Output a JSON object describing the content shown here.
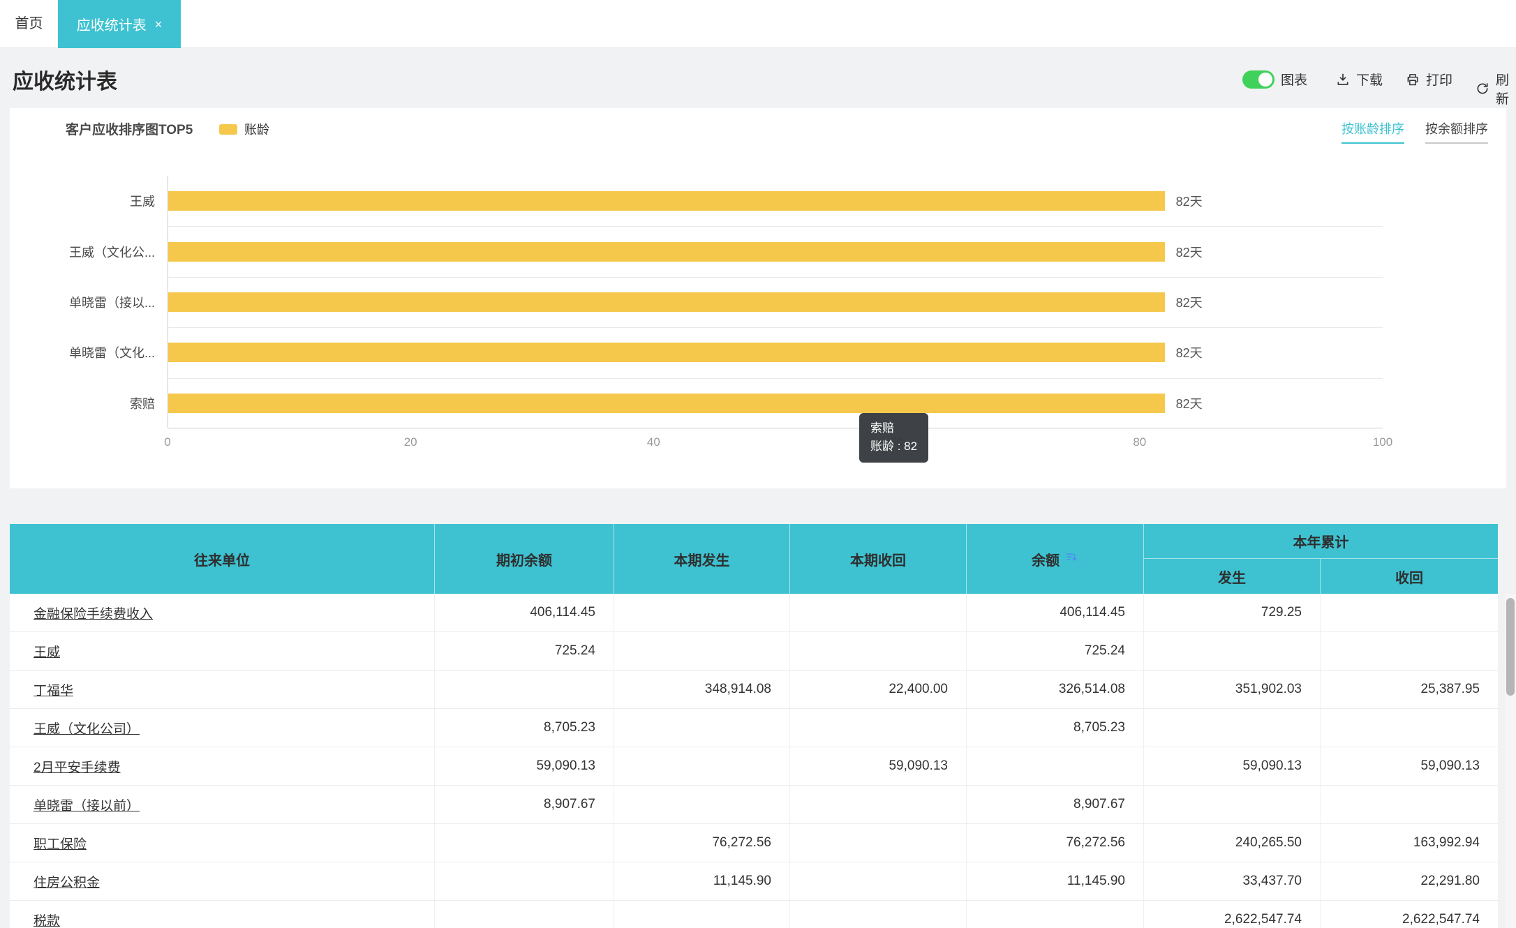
{
  "colors": {
    "accent": "#3ec2d1",
    "bar": "#f5c84c",
    "toggle_on": "#3fd15a"
  },
  "tabs": {
    "home": "首页",
    "active": "应收统计表",
    "close": "×"
  },
  "page": {
    "title": "应收统计表"
  },
  "toolbar": {
    "chart_toggle_label": "图表",
    "download": "下载",
    "print": "打印",
    "refresh": "刷新"
  },
  "chart": {
    "title": "客户应收排序图TOP5",
    "legend": "账龄",
    "sort_by_age": "按账龄排序",
    "sort_by_balance": "按余额排序",
    "tooltip": {
      "line1": "索赔",
      "line2": "账龄 : 82"
    }
  },
  "chart_data": {
    "type": "bar",
    "orientation": "horizontal",
    "title": "客户应收排序图TOP5",
    "series_name": "账龄",
    "categories": [
      "王威",
      "王威（文化公...",
      "单晓雷（接以...",
      "单晓雷（文化...",
      "索赔"
    ],
    "values": [
      82,
      82,
      82,
      82,
      82
    ],
    "value_suffix": "天",
    "xlim": [
      0,
      100
    ],
    "x_ticks": [
      0,
      20,
      40,
      60,
      80,
      100
    ],
    "grid": "category-split-lines",
    "legend_position": "top-left",
    "bar_color": "#f5c84c"
  },
  "table": {
    "headers": {
      "unit": "往来单位",
      "opening": "期初余额",
      "incurred": "本期发生",
      "received": "本期收回",
      "balance": "余额",
      "ytd": "本年累计",
      "ytd_incurred": "发生",
      "ytd_received": "收回"
    },
    "rows": [
      {
        "unit": "金融保险手续费收入",
        "opening": "406,114.45",
        "incurred": "",
        "received": "",
        "balance": "406,114.45",
        "ytd_incurred": "729.25",
        "ytd_received": ""
      },
      {
        "unit": "王威",
        "opening": "725.24",
        "incurred": "",
        "received": "",
        "balance": "725.24",
        "ytd_incurred": "",
        "ytd_received": ""
      },
      {
        "unit": "丁福华",
        "opening": "",
        "incurred": "348,914.08",
        "received": "22,400.00",
        "balance": "326,514.08",
        "ytd_incurred": "351,902.03",
        "ytd_received": "25,387.95"
      },
      {
        "unit": "王威（文化公司）",
        "opening": "8,705.23",
        "incurred": "",
        "received": "",
        "balance": "8,705.23",
        "ytd_incurred": "",
        "ytd_received": ""
      },
      {
        "unit": "2月平安手续费",
        "opening": "59,090.13",
        "incurred": "",
        "received": "59,090.13",
        "balance": "",
        "ytd_incurred": "59,090.13",
        "ytd_received": "59,090.13"
      },
      {
        "unit": "单晓雷（接以前）",
        "opening": "8,907.67",
        "incurred": "",
        "received": "",
        "balance": "8,907.67",
        "ytd_incurred": "",
        "ytd_received": ""
      },
      {
        "unit": "职工保险",
        "opening": "",
        "incurred": "76,272.56",
        "received": "",
        "balance": "76,272.56",
        "ytd_incurred": "240,265.50",
        "ytd_received": "163,992.94"
      },
      {
        "unit": "住房公积金",
        "opening": "",
        "incurred": "11,145.90",
        "received": "",
        "balance": "11,145.90",
        "ytd_incurred": "33,437.70",
        "ytd_received": "22,291.80"
      },
      {
        "unit": "税款",
        "opening": "",
        "incurred": "",
        "received": "",
        "balance": "",
        "ytd_incurred": "2,622,547.74",
        "ytd_received": "2,622,547.74"
      }
    ]
  }
}
